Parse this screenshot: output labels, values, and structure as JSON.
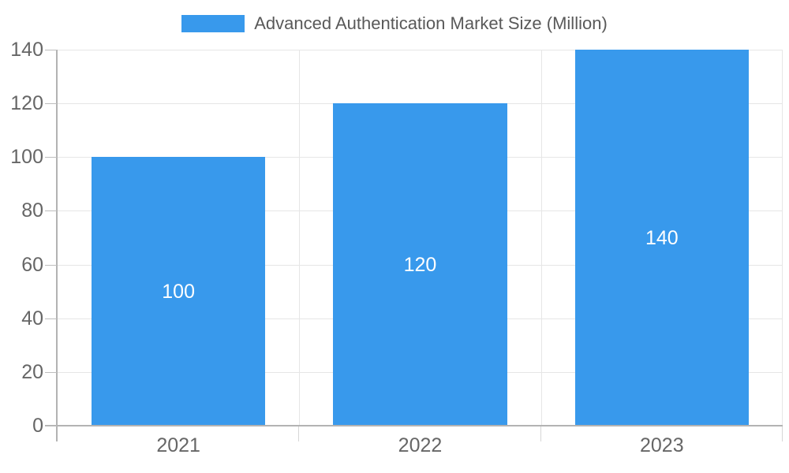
{
  "legend": {
    "label": "Advanced Authentication Market Size (Million)",
    "swatch_color": "#3899EC"
  },
  "chart_data": {
    "type": "bar",
    "title": "Advanced Authentication Market Size (Million)",
    "categories": [
      "2021",
      "2022",
      "2023"
    ],
    "values": [
      100,
      120,
      140
    ],
    "data_labels": [
      "100",
      "120",
      "140"
    ],
    "xlabel": "",
    "ylabel": "",
    "ylim": [
      0,
      140
    ],
    "yticks": [
      0,
      20,
      40,
      60,
      80,
      100,
      120,
      140
    ],
    "grid": true,
    "legend_position": "top",
    "bar_color": "#3899EC",
    "bar_label_color": "#FFFFFF"
  },
  "colors": {
    "bar": "#3899EC",
    "grid": "#E6E6E6",
    "axis": "#B3B3B3",
    "tick": "#BDBDBD",
    "axis_text": "#666666",
    "legend_text": "#595959",
    "bar_label_text": "#FFFFFF",
    "background": "#FFFFFF"
  }
}
